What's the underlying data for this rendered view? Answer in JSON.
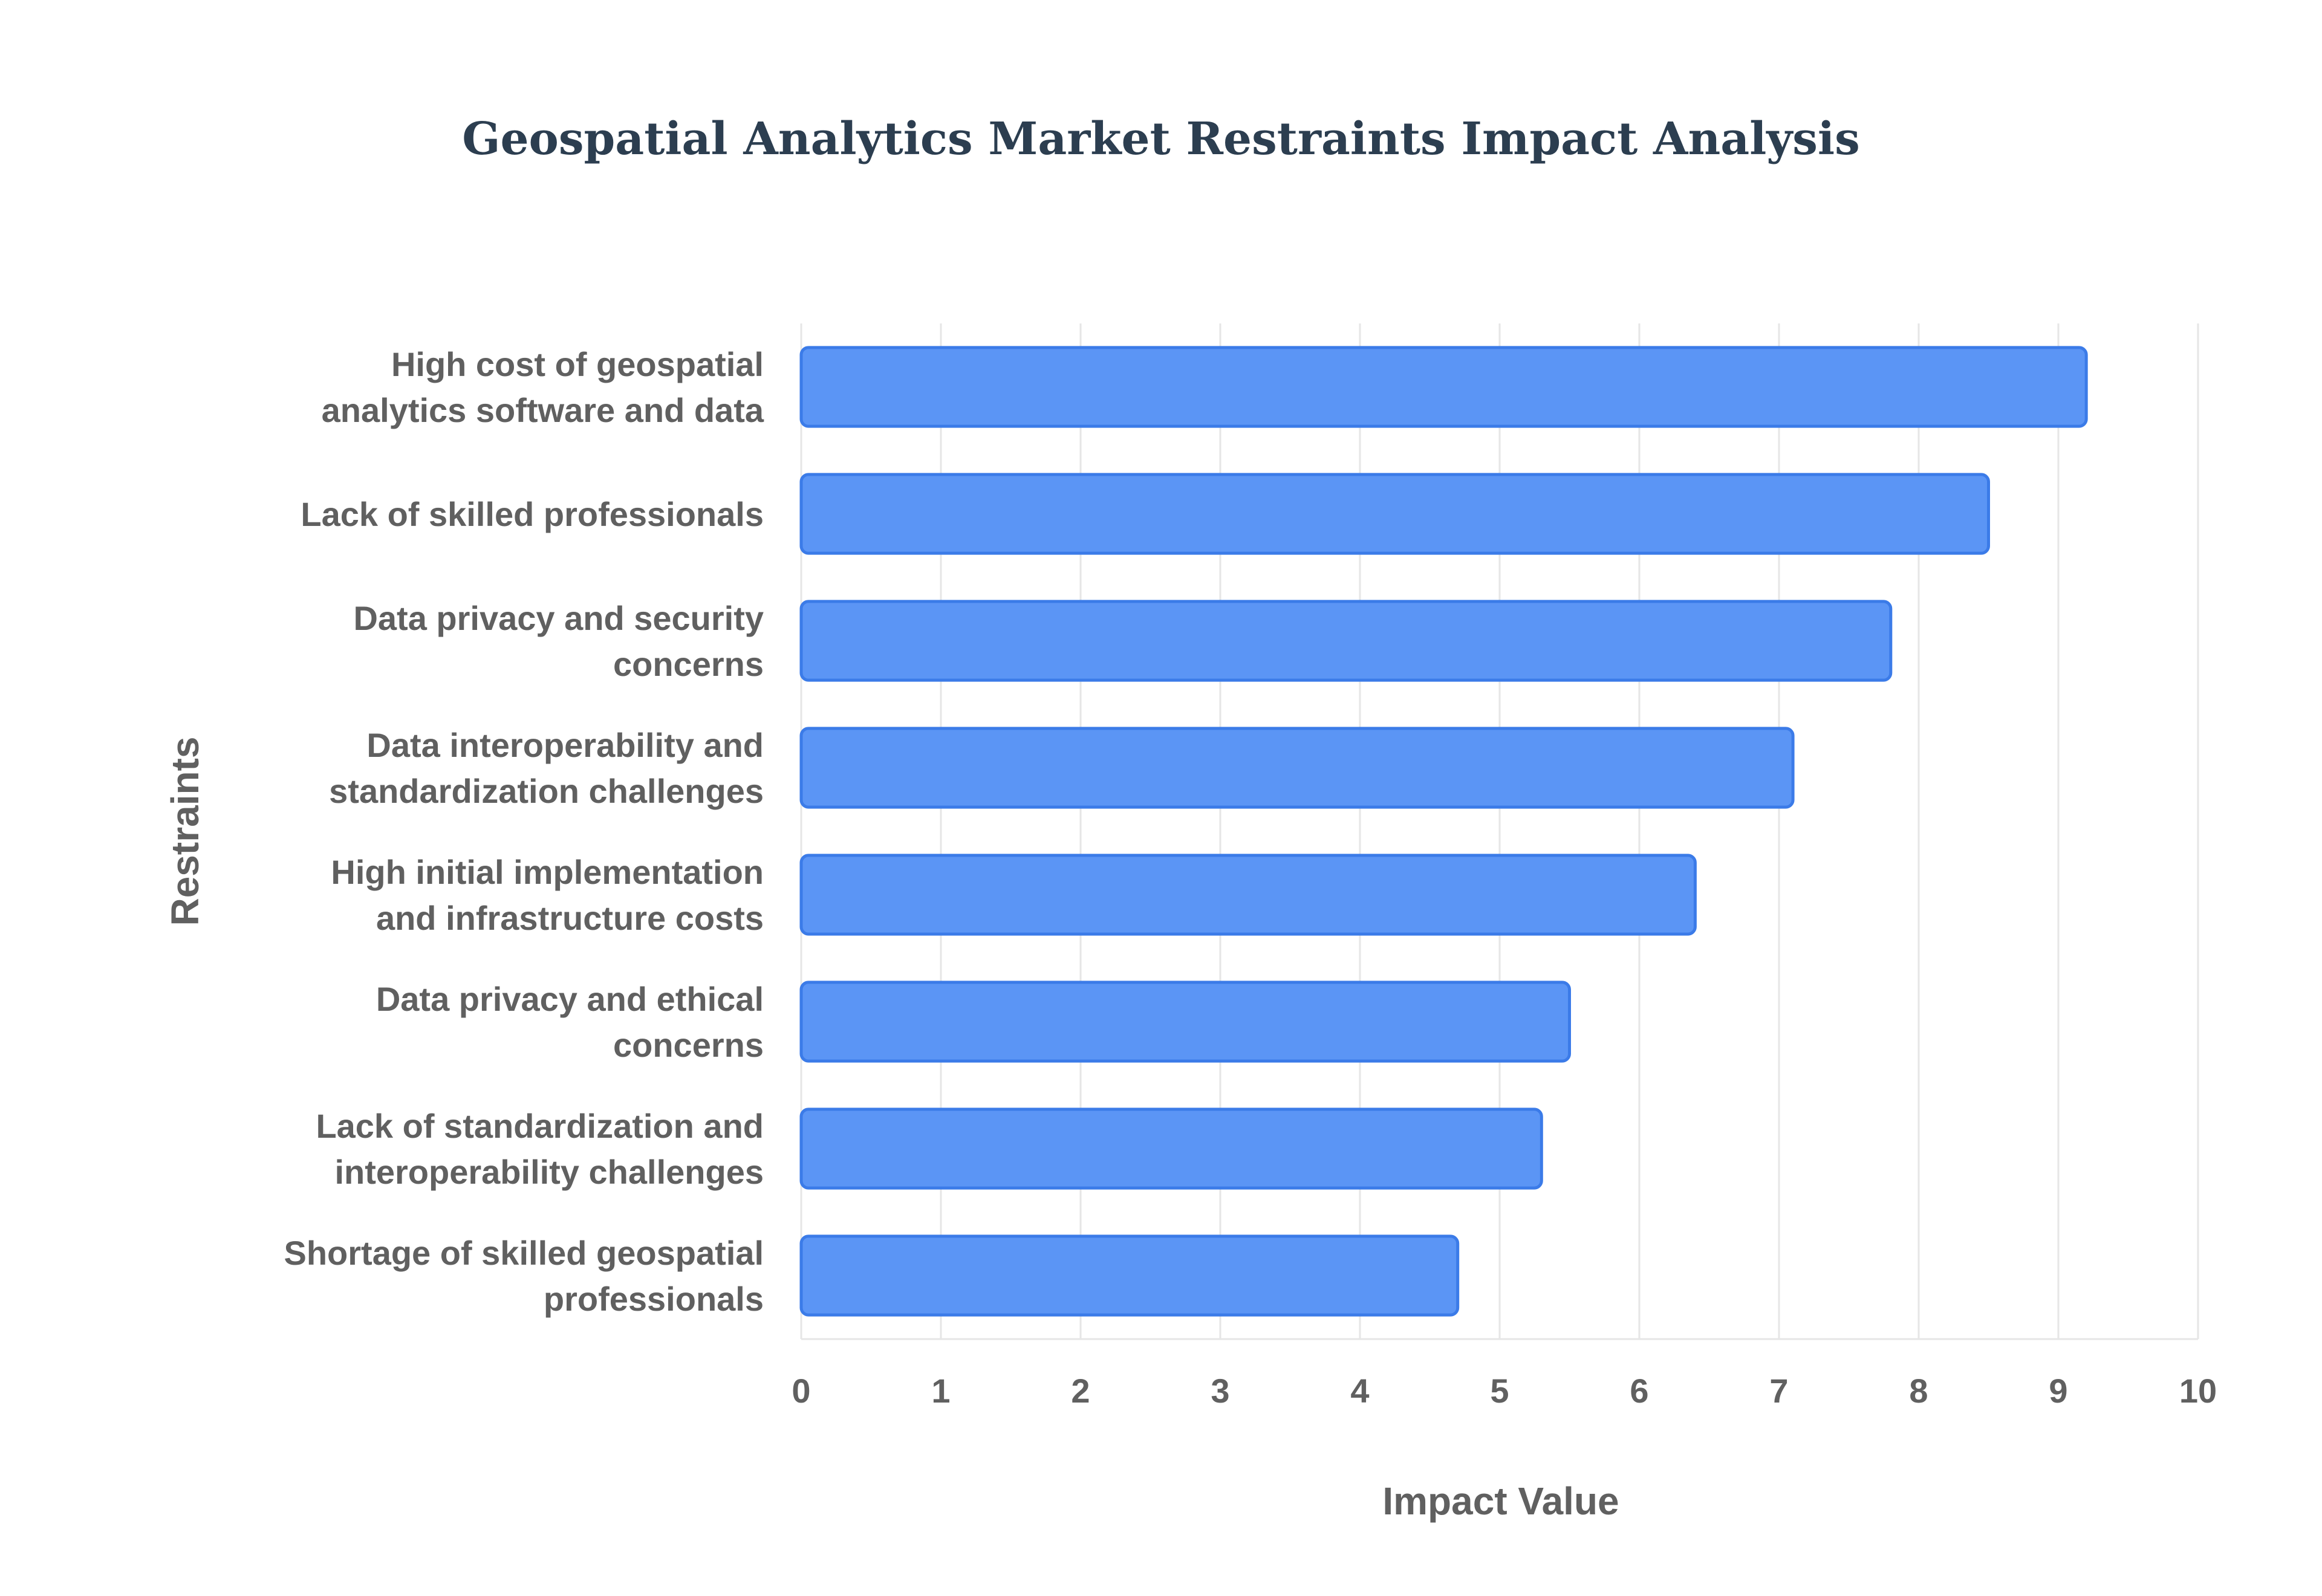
{
  "chart_data": {
    "type": "bar",
    "orientation": "horizontal",
    "title": "Geospatial Analytics Market Restraints Impact Analysis",
    "xlabel": "Impact Value",
    "ylabel": "Restraints",
    "xlim": [
      0,
      10
    ],
    "xticks": [
      "0",
      "1",
      "2",
      "3",
      "4",
      "5",
      "6",
      "7",
      "8",
      "9",
      "10"
    ],
    "grid": true,
    "categories": [
      [
        "High cost of geospatial",
        "analytics software and data"
      ],
      [
        "Lack of skilled professionals"
      ],
      [
        "Data privacy and security",
        "concerns"
      ],
      [
        "Data interoperability and",
        "standardization challenges"
      ],
      [
        "High initial implementation",
        "and infrastructure costs"
      ],
      [
        "Data privacy and ethical",
        "concerns"
      ],
      [
        "Lack of standardization and",
        "interoperability challenges"
      ],
      [
        "Shortage of skilled geospatial",
        "professionals"
      ]
    ],
    "values": [
      9.2,
      8.5,
      7.8,
      7.1,
      6.4,
      5.5,
      5.3,
      4.7
    ],
    "colors": {
      "bar_fill": "#5b95f5",
      "bar_stroke": "#3b7be8"
    }
  }
}
